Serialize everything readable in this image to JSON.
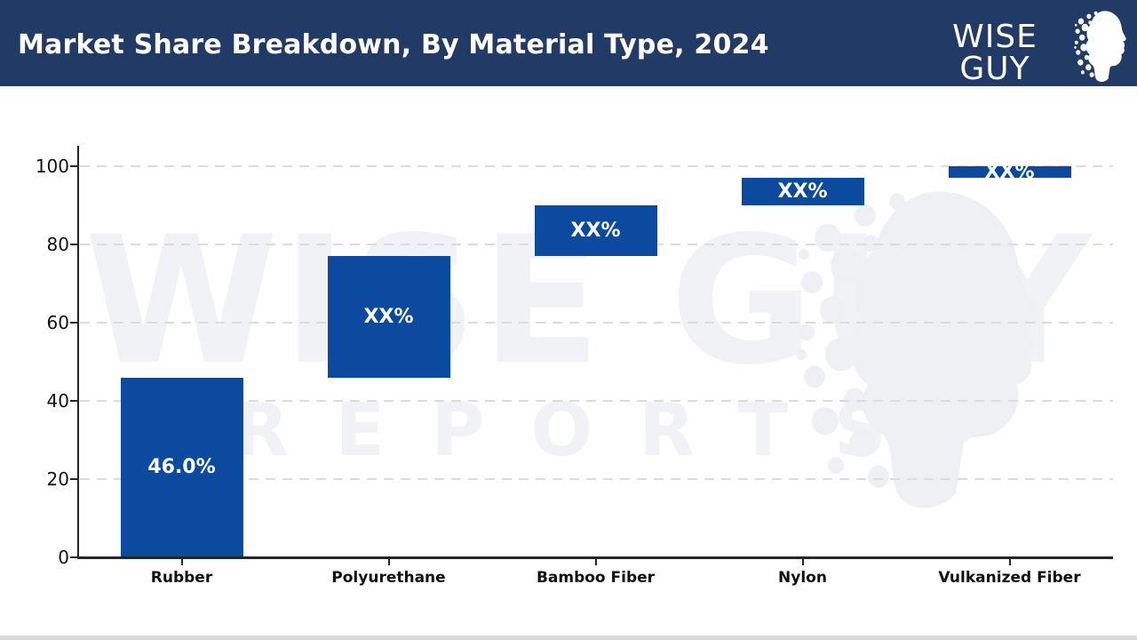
{
  "header": {
    "title": "Market Share Breakdown, By Material Type, 2024",
    "logo": {
      "line1": "WISE GUY",
      "line2": "REPORTS"
    }
  },
  "watermark": {
    "line1": "WISE GUY",
    "line2": "REPORTS"
  },
  "colors": {
    "header_bg": "#213a66",
    "bar": "#0b4a9e",
    "grid": "#dcdcdc",
    "axis": "#262626",
    "watermark": "#f1f2f5",
    "bar_label_text": "#ffffff",
    "footer_line": "#d9d9d9"
  },
  "chart_data": {
    "type": "bar",
    "subtype": "waterfall",
    "title": "Market Share Breakdown, By Material Type, 2024",
    "categories": [
      "Rubber",
      "Polyurethane",
      "Bamboo Fiber",
      "Nylon",
      "Vulkanized Fiber"
    ],
    "segments": [
      {
        "category": "Rubber",
        "start": 0,
        "end": 46,
        "value": 46,
        "label": "46.0%"
      },
      {
        "category": "Polyurethane",
        "start": 46,
        "end": 77,
        "value": 31,
        "label": "XX%"
      },
      {
        "category": "Bamboo Fiber",
        "start": 77,
        "end": 90,
        "value": 13,
        "label": "XX%"
      },
      {
        "category": "Nylon",
        "start": 90,
        "end": 97,
        "value": 7,
        "label": "XX%"
      },
      {
        "category": "Vulkanized Fiber",
        "start": 97,
        "end": 100,
        "value": 3,
        "label": "XX%"
      }
    ],
    "y_ticks": [
      0,
      20,
      40,
      60,
      80,
      100
    ],
    "ylim": [
      0,
      105
    ],
    "xlabel": "",
    "ylabel": "",
    "grid": "horizontal-dashed",
    "legend": "none",
    "bar_color": "#0b4a9e"
  }
}
